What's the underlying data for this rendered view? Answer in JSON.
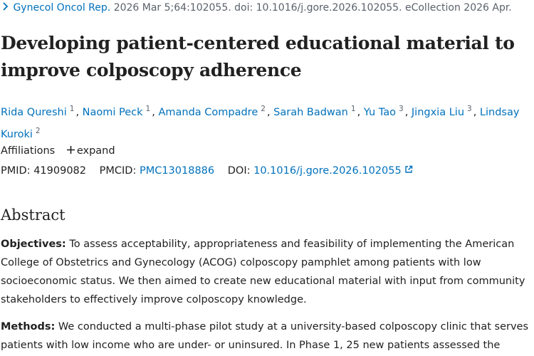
{
  "citation": {
    "journal": "Gynecol Oncol Rep.",
    "details": "2026 Mar 5;64:102055. doi: 10.1016/j.gore.2026.102055. eCollection 2026 Apr."
  },
  "title": "Developing patient-centered educational material to improve colposcopy adherence",
  "authors": {
    "separator": ",",
    "list": [
      {
        "name": "Rida Qureshi",
        "aff": "1"
      },
      {
        "name": "Naomi Peck",
        "aff": "1"
      },
      {
        "name": "Amanda Compadre",
        "aff": "2"
      },
      {
        "name": "Sarah Badwan",
        "aff": "1"
      },
      {
        "name": "Yu Tao",
        "aff": "3"
      },
      {
        "name": "Jingxia Liu",
        "aff": "3"
      },
      {
        "name": "Lindsay Kuroki",
        "aff": "2"
      }
    ]
  },
  "affiliations": {
    "label": "Affiliations",
    "toggle": "expand"
  },
  "identifiers": {
    "pmid_label": "PMID:",
    "pmid": "41909082",
    "pmcid_label": "PMCID:",
    "pmcid": "PMC13018886",
    "doi_label": "DOI:",
    "doi": "10.1016/j.gore.2026.102055"
  },
  "abstract": {
    "heading": "Abstract",
    "sections": [
      {
        "label": "Objectives:",
        "text": "To assess acceptability, appropriateness and feasibility of implementing the American College of Obstetrics and Gynecology (ACOG) colposcopy pamphlet among patients with low socioeconomic status. We then aimed to create new educational material with input from community stakeholders to effectively improve colposcopy knowledge."
      },
      {
        "label": "Methods:",
        "text": "We conducted a multi-phase pilot study at a university-based colposcopy clinic that serves patients with low income who are under- or uninsured. In Phase 1, 25 new patients assessed the"
      }
    ]
  }
}
